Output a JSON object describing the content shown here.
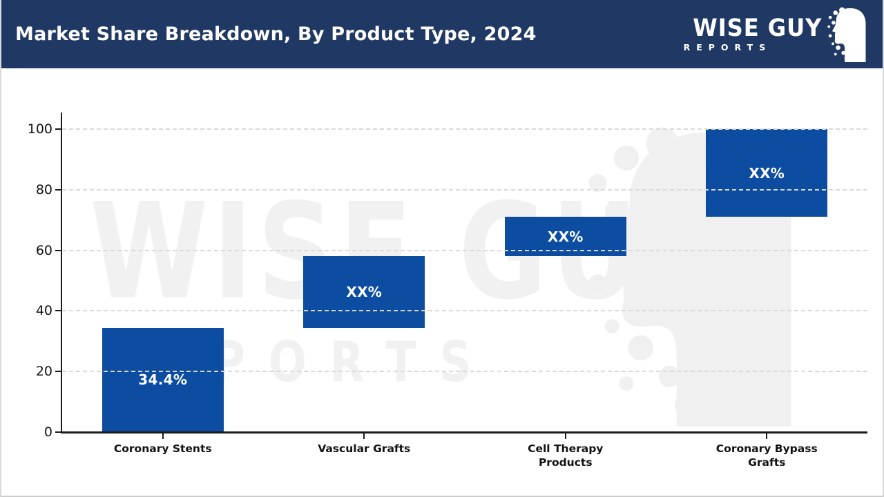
{
  "header": {
    "title": "Market Share Breakdown, By Product Type, 2024",
    "logo": {
      "line1": "WISE GUY",
      "line2": "REPORTS"
    }
  },
  "watermark": {
    "line1": "WISE GUY",
    "line2": "REPORTS"
  },
  "chart_data": {
    "type": "bar",
    "variant": "waterfall",
    "title": "Market Share Breakdown, By Product Type, 2024",
    "categories": [
      "Coronary Stents",
      "Vascular Grafts",
      "Cell Therapy Products",
      "Coronary Bypass Grafts"
    ],
    "segments": [
      {
        "category": "Coronary Stents",
        "start": 0,
        "end": 34.4,
        "label": "34.4%"
      },
      {
        "category": "Vascular Grafts",
        "start": 34.4,
        "end": 58,
        "label": "XX%"
      },
      {
        "category": "Cell Therapy Products",
        "start": 58,
        "end": 71,
        "label": "XX%"
      },
      {
        "category": "Coronary Bypass Grafts",
        "start": 71,
        "end": 100,
        "label": "XX%"
      }
    ],
    "y_ticks": [
      0,
      20,
      40,
      60,
      80,
      100
    ],
    "y_tick_labels": [
      "0",
      "20",
      "40",
      "60",
      "80",
      "100"
    ],
    "ylim": [
      0,
      105
    ],
    "xlabel": "",
    "ylabel": "",
    "legend": "none",
    "grid": {
      "axis": "y",
      "style": "dashed",
      "over_bars": true
    },
    "colors": {
      "bar": "#0C4DA2",
      "bar_label": "#FFFFFF",
      "header_bg": "#203864",
      "grid": "#D9D9D9",
      "axis": "#1A1A1A",
      "watermark": "#F1F1F1"
    }
  }
}
